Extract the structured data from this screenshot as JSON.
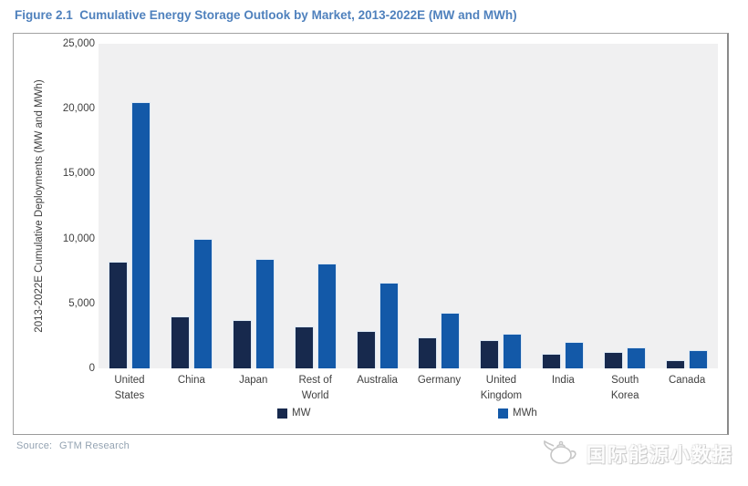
{
  "chart_data": {
    "type": "bar",
    "title": "Figure 2.1  Cumulative Energy Storage Outlook by Market, 2013-2022E (MW and MWh)",
    "title_color": "#4f81bd",
    "ylabel": "2013-2022E Cumulative Deployments (MW and MWh)",
    "ylim": [
      0,
      25000
    ],
    "yticks": {
      "values": [
        25000,
        20000,
        15000,
        10000,
        5000,
        0
      ],
      "labels": [
        "25,000",
        "20,000",
        "15,000",
        "10,000",
        "5,000",
        "0"
      ]
    },
    "grid": false,
    "legend_position": "bottom",
    "plot_bg": "#f0f0f1",
    "bar_border": "#dce8f4",
    "categories": [
      {
        "label": "United States",
        "lines": [
          "United",
          "States"
        ]
      },
      {
        "label": "China",
        "lines": [
          "China"
        ]
      },
      {
        "label": "Japan",
        "lines": [
          "Japan"
        ]
      },
      {
        "label": "Rest of World",
        "lines": [
          "Rest of",
          "World"
        ]
      },
      {
        "label": "Australia",
        "lines": [
          "Australia"
        ]
      },
      {
        "label": "Germany",
        "lines": [
          "Germany"
        ]
      },
      {
        "label": "United Kingdom",
        "lines": [
          "United",
          "Kingdom"
        ]
      },
      {
        "label": "India",
        "lines": [
          "India"
        ]
      },
      {
        "label": "South Korea",
        "lines": [
          "South",
          "Korea"
        ]
      },
      {
        "label": "Canada",
        "lines": [
          "Canada"
        ]
      }
    ],
    "series": [
      {
        "name": "MW",
        "color": "#17294d",
        "values": [
          8200,
          4000,
          3700,
          3200,
          2900,
          2400,
          2150,
          1100,
          1250,
          650
        ]
      },
      {
        "name": "MWh",
        "color": "#1359a8",
        "values": [
          20500,
          10000,
          8400,
          8100,
          6600,
          4300,
          2700,
          2050,
          1600,
          1400
        ]
      }
    ]
  },
  "source": {
    "label": "Source:",
    "value": "GTM Research"
  },
  "watermark": {
    "text": "国际能源小数据",
    "logo": "teapot-icon"
  }
}
